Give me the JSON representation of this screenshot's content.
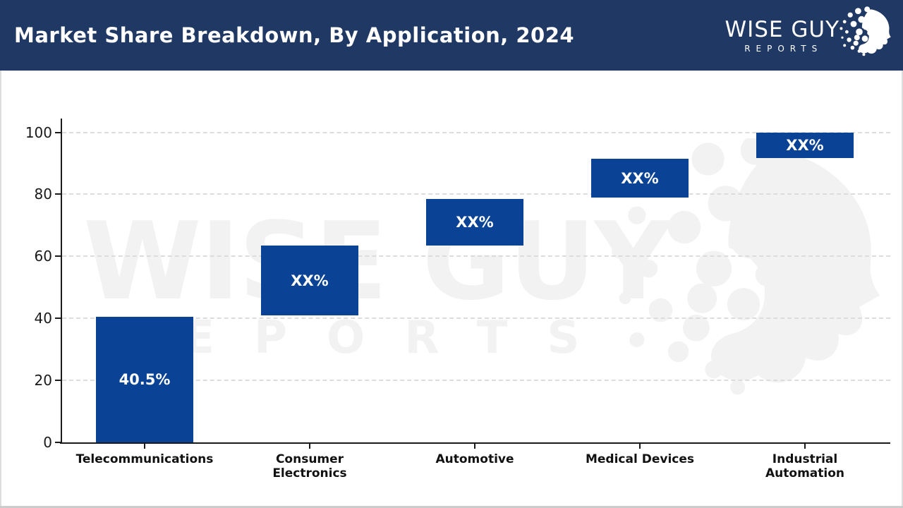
{
  "header": {
    "title": "Market Share Breakdown, By Application, 2024",
    "brand": {
      "name": "WISE GUY",
      "subname": "REPORTS"
    }
  },
  "watermark": {
    "line1": "WISE GUY",
    "line2": "REPORTS"
  },
  "chart_data": {
    "type": "bar",
    "subtype": "waterfall",
    "title": "Market Share Breakdown, By Application, 2024",
    "unit": "percent market share",
    "categories": [
      "Telecommunications",
      "Consumer Electronics",
      "Automotive",
      "Medical Devices",
      "Industrial Automation"
    ],
    "tick_labels": [
      "Telecommunications",
      "Consumer\nElectronics",
      "Automotive",
      "Medical Devices",
      "Industrial\nAutomation"
    ],
    "bars": [
      {
        "category": "Telecommunications",
        "start": 0,
        "end": 40.5,
        "label": "40.5%"
      },
      {
        "category": "Consumer Electronics",
        "start": 41,
        "end": 63.4,
        "label": "XX%"
      },
      {
        "category": "Automotive",
        "start": 63.6,
        "end": 78.6,
        "label": "XX%"
      },
      {
        "category": "Medical Devices",
        "start": 79,
        "end": 91.4,
        "label": "XX%"
      },
      {
        "category": "Industrial Automation",
        "start": 91.6,
        "end": 100,
        "label": "XX%"
      }
    ],
    "yticks": [
      0,
      20,
      40,
      60,
      80,
      100
    ],
    "ylim": [
      0,
      104
    ],
    "grid": "dashed-horizontal",
    "legend": "none",
    "colors": {
      "bar": "#0a4296",
      "bar_label": "#ffffff",
      "axis": "#1a1a1a",
      "grid": "#dcdcdc",
      "header_bg": "#203864",
      "watermark": "#f2f2f2"
    }
  }
}
